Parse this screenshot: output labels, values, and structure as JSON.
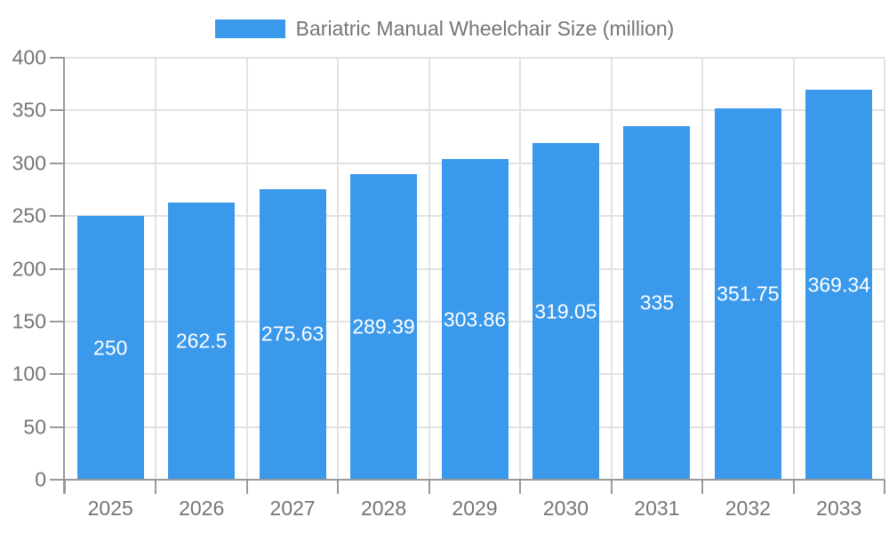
{
  "chart_data": {
    "type": "bar",
    "title": "Bariatric Manual Wheelchair Size (million)",
    "legend": {
      "position": "top",
      "label": "Bariatric Manual Wheelchair Size (million)"
    },
    "categories": [
      "2025",
      "2026",
      "2027",
      "2028",
      "2029",
      "2030",
      "2031",
      "2032",
      "2033"
    ],
    "series": [
      {
        "name": "Bariatric Manual Wheelchair Size (million)",
        "values": [
          250,
          262.5,
          275.63,
          289.39,
          303.86,
          319.05,
          335,
          351.75,
          369.34
        ]
      }
    ],
    "data_labels": [
      "250",
      "262.5",
      "275.63",
      "289.39",
      "303.86",
      "319.05",
      "335",
      "351.75",
      "369.34"
    ],
    "xlabel": "",
    "ylabel": "",
    "ylim": [
      0,
      400
    ],
    "ytick_step": 50,
    "y_ticks": [
      0,
      50,
      100,
      150,
      200,
      250,
      300,
      350,
      400
    ],
    "grid": true,
    "colors": {
      "bar": "#3b99ec",
      "axis": "#999999",
      "grid": "#e2e2e2",
      "text": "#757575",
      "data_label": "#ffffff",
      "background": "#ffffff"
    }
  }
}
